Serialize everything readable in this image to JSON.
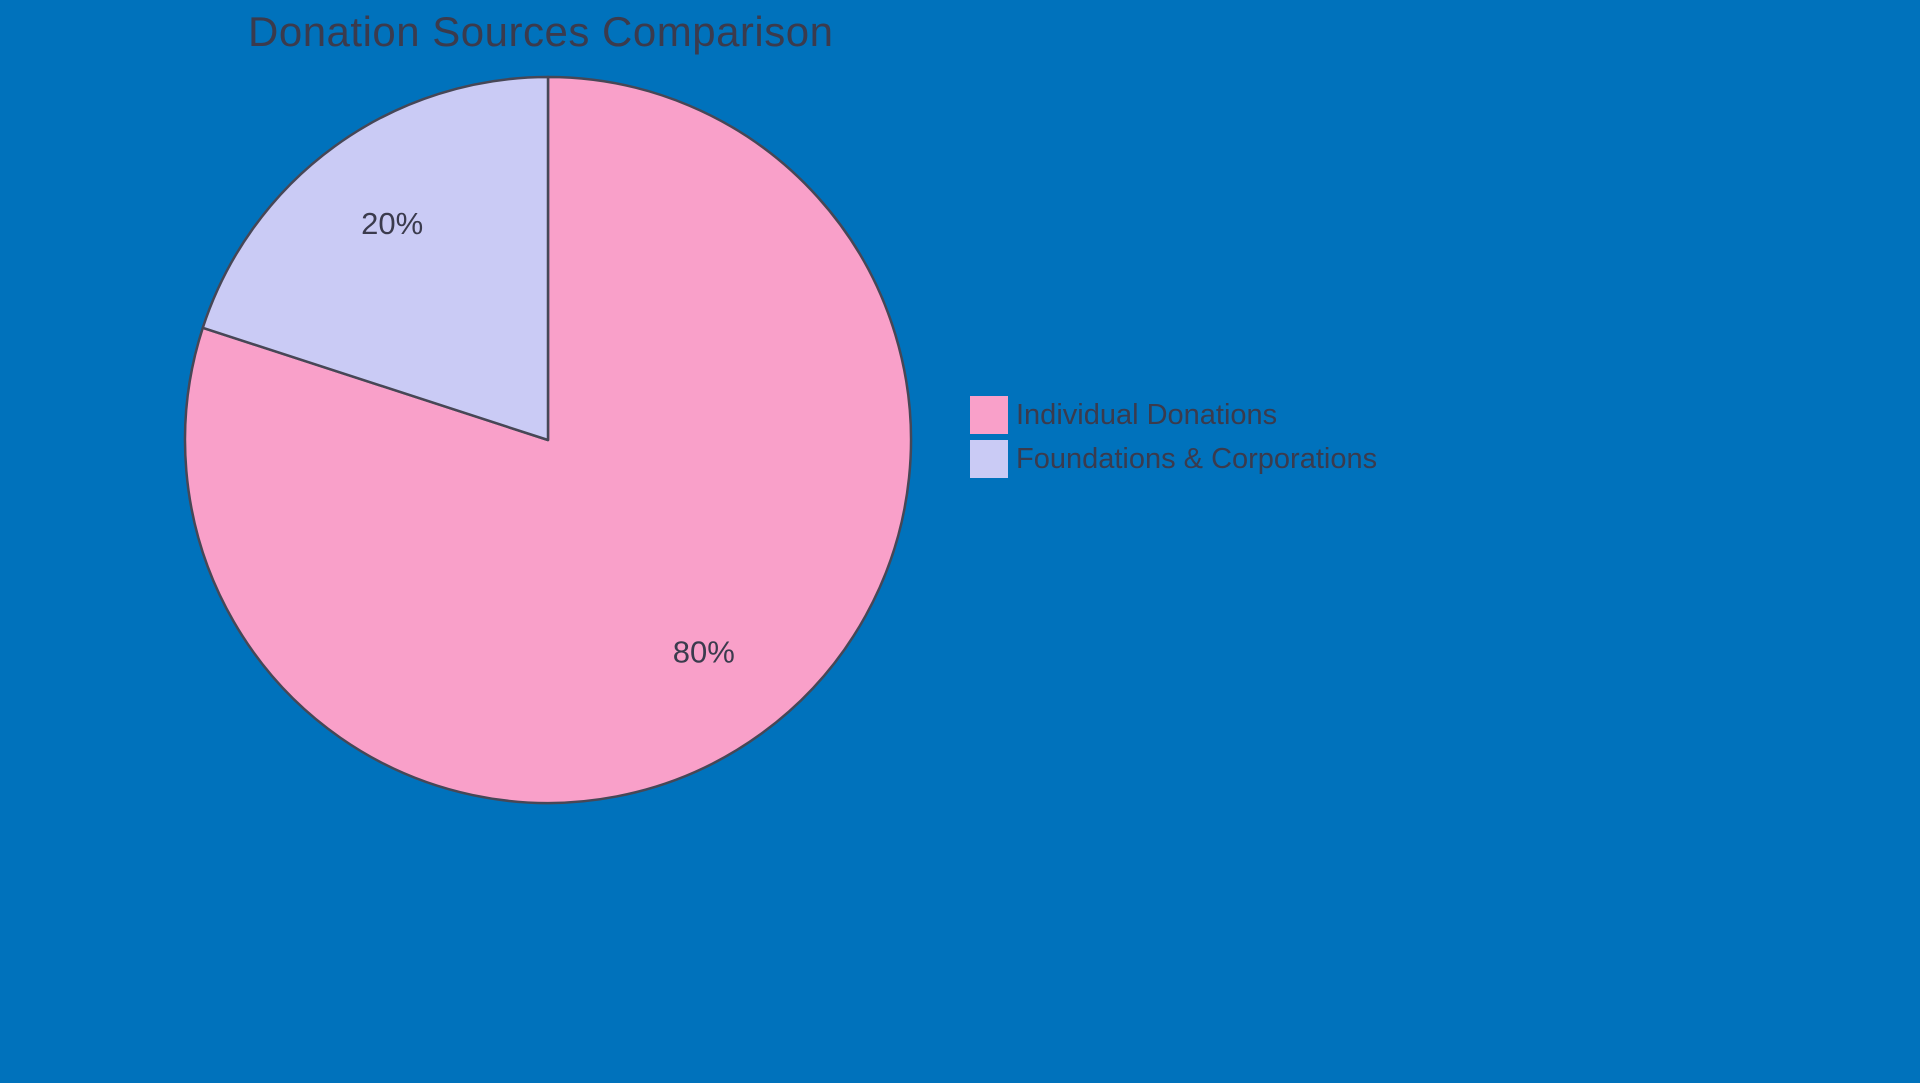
{
  "background_color": "#0072BC",
  "chart_data": {
    "type": "pie",
    "title": "Donation Sources Comparison",
    "slices": [
      {
        "label": "Individual Donations",
        "value": 80,
        "percent_text": "80%",
        "color": "#F9A0C9"
      },
      {
        "label": "Foundations & Corporations",
        "value": 20,
        "percent_text": "20%",
        "color": "#CACBF5"
      }
    ],
    "border_color": "#474756",
    "label_color": "#3B3B4D",
    "legend_position": "right",
    "start_angle": "top",
    "direction": "clockwise"
  }
}
